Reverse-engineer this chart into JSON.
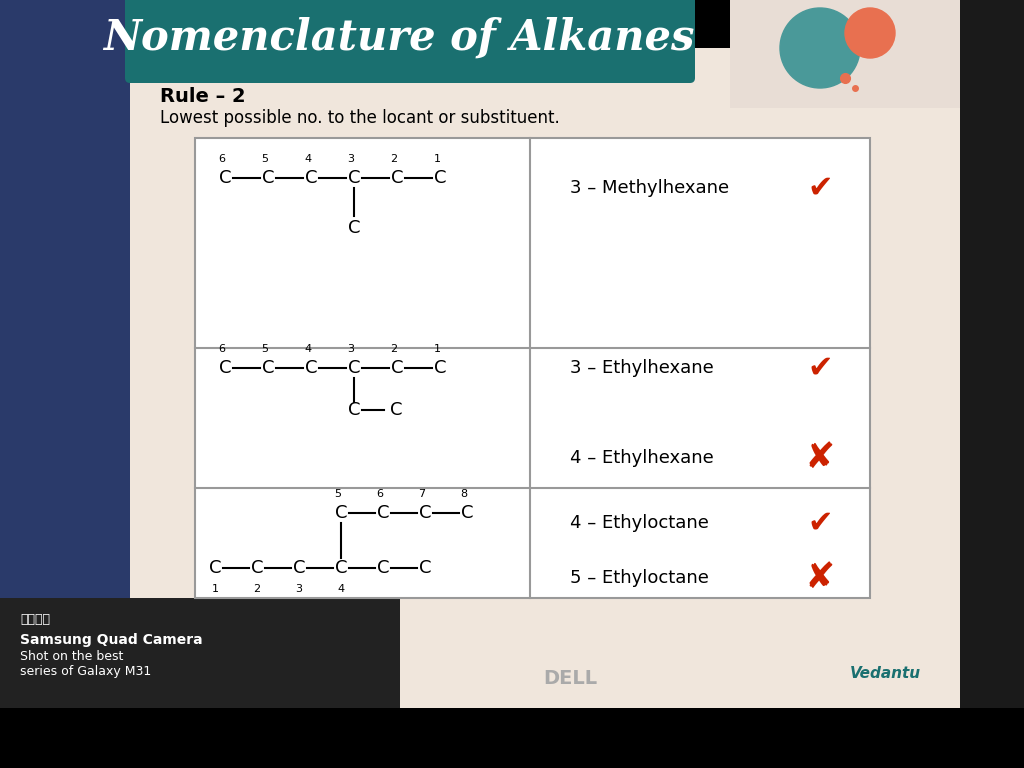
{
  "title": "Nomenclature of Alkanes",
  "title_bg": "#1a7070",
  "title_color": "white",
  "rule_text": "Rule – 2",
  "subtitle": "Lowest possible no. to the locant or substituent.",
  "content_bg": "#f0e6dc",
  "outer_bg": "#1a1a2e",
  "left_border_bg": "#2a3a6a",
  "right_border_bg": "#2a2a2a",
  "vedantu_text": "Vedantu",
  "check_color": "#cc2200",
  "cross_color": "#cc2200",
  "samsung_text": [
    "Samsung Quad Camera",
    "Shot on the best",
    "series of Galaxy M31"
  ],
  "dell_text": "DELL"
}
